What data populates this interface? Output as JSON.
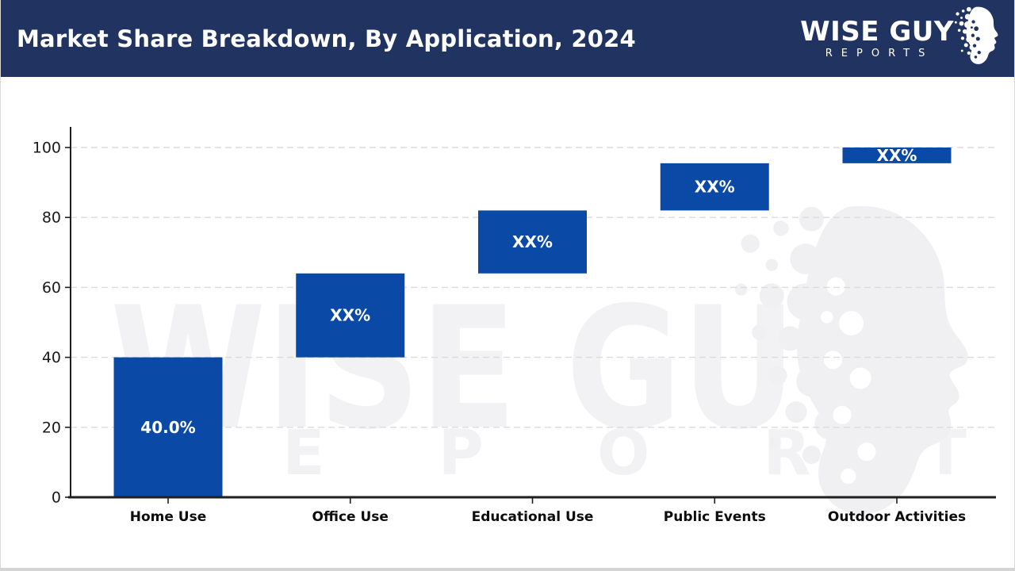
{
  "header": {
    "title": "Market Share Breakdown, By Application, 2024",
    "logo": {
      "wordmark": "WISE GUY",
      "subtext": "REPORTS"
    }
  },
  "watermark": {
    "line1": "WISE GUY",
    "line2": "R E P O R T S"
  },
  "chart_data": {
    "type": "bar",
    "subtype": "waterfall",
    "title": "Market Share Breakdown, By Application, 2024",
    "categories": [
      "Home Use",
      "Office Use",
      "Educational Use",
      "Public Events",
      "Outdoor Activities"
    ],
    "bars": [
      {
        "category": "Home Use",
        "start": 0,
        "end": 40,
        "label": "40.0%"
      },
      {
        "category": "Office Use",
        "start": 40,
        "end": 64,
        "label": "XX%"
      },
      {
        "category": "Educational Use",
        "start": 64,
        "end": 82,
        "label": "XX%"
      },
      {
        "category": "Public Events",
        "start": 82,
        "end": 95.5,
        "label": "XX%"
      },
      {
        "category": "Outdoor Activities",
        "start": 95.5,
        "end": 100,
        "label": "XX%"
      }
    ],
    "xlabel": "",
    "ylabel": "",
    "ylim": [
      0,
      100
    ],
    "yticks": [
      0,
      20,
      40,
      60,
      80,
      100
    ],
    "grid": "horizontal-dashed",
    "legend": "none",
    "bar_color": "#0a49a6",
    "bar_label_color": "#ffffff"
  },
  "colors": {
    "header_bg": "#213461",
    "axis": "#1f1f1f",
    "gridline": "#dbdbdb",
    "tick_text": "#1a1a1a",
    "category_text": "#0d0d0d",
    "watermark": "#f2f2f4",
    "frame_border": "#d4d4d4"
  }
}
